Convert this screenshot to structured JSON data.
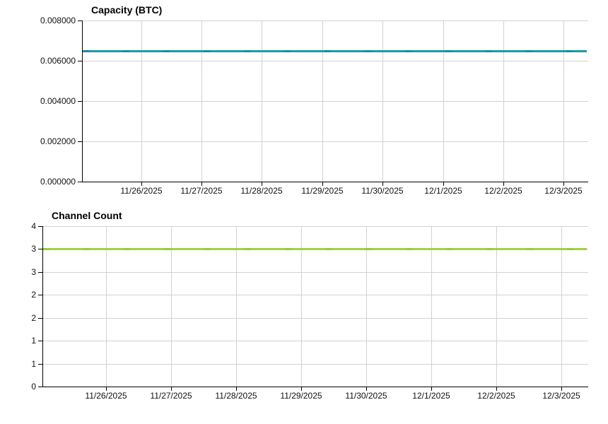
{
  "style": {
    "background": "#ffffff",
    "grid_color": "#d2d2d2",
    "axis_color": "#000000",
    "label_color": "#111111",
    "title_color": "#000000"
  },
  "chart_data": [
    {
      "type": "line",
      "title": "Capacity (BTC)",
      "x": [
        "11/26/2025",
        "11/27/2025",
        "11/28/2025",
        "11/29/2025",
        "11/30/2025",
        "12/1/2025",
        "12/2/2025",
        "12/3/2025"
      ],
      "yticks": [
        "0.008000",
        "0.006000",
        "0.004000",
        "0.002000",
        "0.000000"
      ],
      "ylim": [
        0,
        0.008
      ],
      "grid": true,
      "legend": false,
      "series": [
        {
          "name": "capacity-btc",
          "color": "#1a9ba6",
          "marker_color": "#0f7f8a",
          "values": [
            0.0065,
            0.0065,
            0.0065,
            0.0065,
            0.0065,
            0.0065,
            0.0065,
            0.0065
          ]
        }
      ]
    },
    {
      "type": "line",
      "title": "Channel Count",
      "x": [
        "11/26/2025",
        "11/27/2025",
        "11/28/2025",
        "11/29/2025",
        "11/30/2025",
        "12/1/2025",
        "12/2/2025",
        "12/3/2025"
      ],
      "yticks": [
        "4",
        "3",
        "3",
        "2",
        "2",
        "1",
        "1",
        "0"
      ],
      "ylim": [
        0,
        4
      ],
      "grid": true,
      "legend": false,
      "series": [
        {
          "name": "channel-count",
          "color": "#a2d045",
          "marker_color": "#8fbf33",
          "values": [
            3,
            3,
            3,
            3,
            3,
            3,
            3,
            3
          ],
          "value_tick_index": 1
        }
      ]
    }
  ]
}
